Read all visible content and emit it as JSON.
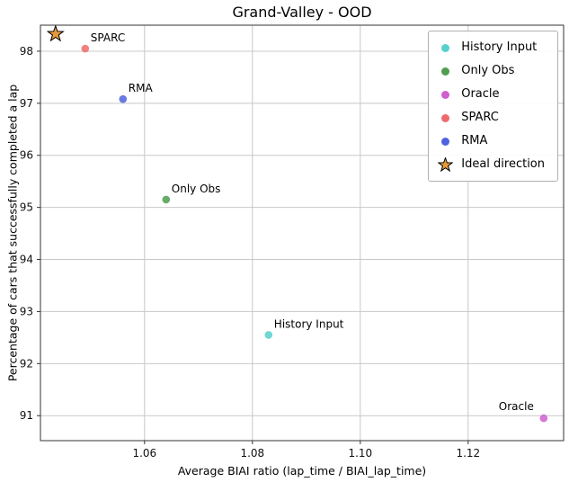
{
  "chart_data": {
    "type": "scatter",
    "title": "Grand-Valley - OOD",
    "xlabel": "Average BIAI ratio (lap_time / BIAI_lap_time)",
    "ylabel": "Percentage of cars that successfully completed a lap",
    "xlim": [
      1.0407,
      1.1377
    ],
    "ylim": [
      90.52,
      98.5
    ],
    "xticks": [
      1.06,
      1.08,
      1.1,
      1.12
    ],
    "xtick_labels": [
      "1.06",
      "1.08",
      "1.10",
      "1.12"
    ],
    "yticks": [
      91,
      92,
      93,
      94,
      95,
      96,
      97,
      98
    ],
    "ytick_labels": [
      "91",
      "92",
      "93",
      "94",
      "95",
      "96",
      "97",
      "98"
    ],
    "grid": true,
    "legend_position": "upper right",
    "colors": {
      "grid": "#c8c8c8",
      "spine": "#333333",
      "background": "#ffffff",
      "annotation_text": "#000000"
    },
    "series": [
      {
        "name": "History Input",
        "marker": "circle",
        "color": "#57d0cc",
        "points": [
          {
            "x": 1.083,
            "y": 92.55
          }
        ],
        "annotation": {
          "text": "History Input",
          "dx": 6,
          "dy": -8
        }
      },
      {
        "name": "Only Obs",
        "marker": "circle",
        "color": "#4f9e4f",
        "points": [
          {
            "x": 1.064,
            "y": 95.15
          }
        ],
        "annotation": {
          "text": "Only Obs",
          "dx": 6,
          "dy": -8
        }
      },
      {
        "name": "Oracle",
        "marker": "circle",
        "color": "#cf5ecf",
        "points": [
          {
            "x": 1.134,
            "y": 90.95
          }
        ],
        "annotation": {
          "text": "Oracle",
          "dx": -50,
          "dy": -9
        }
      },
      {
        "name": "SPARC",
        "marker": "circle",
        "color": "#ee6b6b",
        "points": [
          {
            "x": 1.049,
            "y": 98.05
          }
        ],
        "annotation": {
          "text": "SPARC",
          "dx": 6,
          "dy": -8
        }
      },
      {
        "name": "RMA",
        "marker": "circle",
        "color": "#4f63de",
        "points": [
          {
            "x": 1.056,
            "y": 97.08
          }
        ],
        "annotation": {
          "text": "RMA",
          "dx": 6,
          "dy": -8
        }
      },
      {
        "name": "Ideal direction",
        "marker": "star",
        "color": "#e59b3c",
        "edge_color": "#000000",
        "points": [
          {
            "x": 1.0435,
            "y": 98.33
          }
        ],
        "annotation": null
      }
    ]
  }
}
